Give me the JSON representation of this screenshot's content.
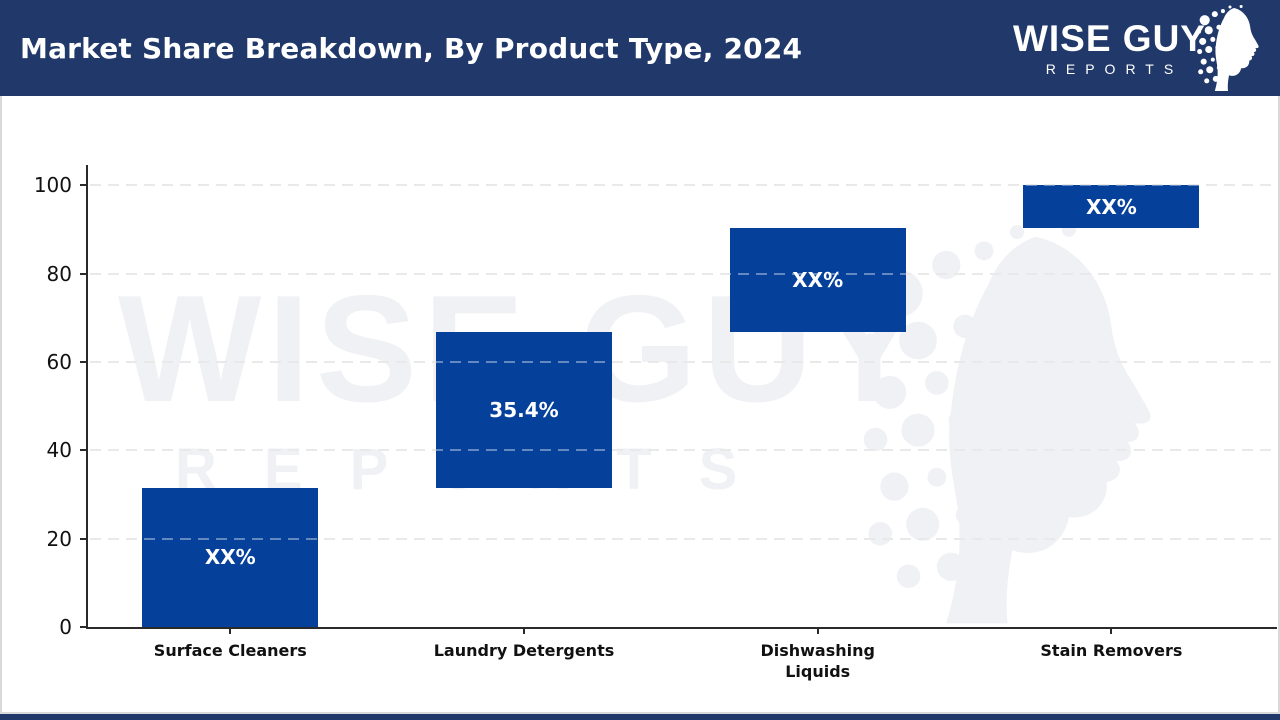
{
  "header": {
    "title": "Market Share Breakdown, By Product Type, 2024",
    "logo": {
      "line1": "WISE GUY",
      "line2": "REPORTS"
    }
  },
  "watermark": {
    "line1": "WISE GUY",
    "line2": "REPORTS"
  },
  "footer": {},
  "chart_data": {
    "type": "bar",
    "subtype": "floating-waterfall",
    "title": "Market Share Breakdown, By Product Type, 2024",
    "xlabel": "",
    "ylabel": "",
    "categories": [
      "Surface Cleaners",
      "Laundry Detergents",
      "Dishwashing\nLiquids",
      "Stain Removers"
    ],
    "segments": [
      {
        "category": "Surface Cleaners",
        "start": 0,
        "end": 31.5,
        "value": 31.5,
        "label": "XX%"
      },
      {
        "category": "Laundry Detergents",
        "start": 31.5,
        "end": 66.9,
        "value": 35.4,
        "label": "35.4%"
      },
      {
        "category": "Dishwashing Liquids",
        "start": 66.9,
        "end": 90.4,
        "value": 23.5,
        "label": "XX%"
      },
      {
        "category": "Stain Removers",
        "start": 90.4,
        "end": 100,
        "value": 9.6,
        "label": "XX%"
      }
    ],
    "yticks": [
      0,
      20,
      40,
      60,
      80,
      100
    ],
    "ytick_labels": [
      "0",
      "20",
      "40",
      "60",
      "80",
      "100"
    ],
    "ylim": [
      0,
      105
    ],
    "grid": "horizontal-dashed",
    "legend": "none"
  },
  "colors": {
    "header_bg": "#20386a",
    "footer_bg": "#20386a",
    "bar_fill": "#05419b",
    "grid_line": "#dcdcdc",
    "axis_line": "#2a2a2a",
    "tick_text": "#111111",
    "title_text": "#ffffff",
    "watermark": "#f0f1f4"
  }
}
